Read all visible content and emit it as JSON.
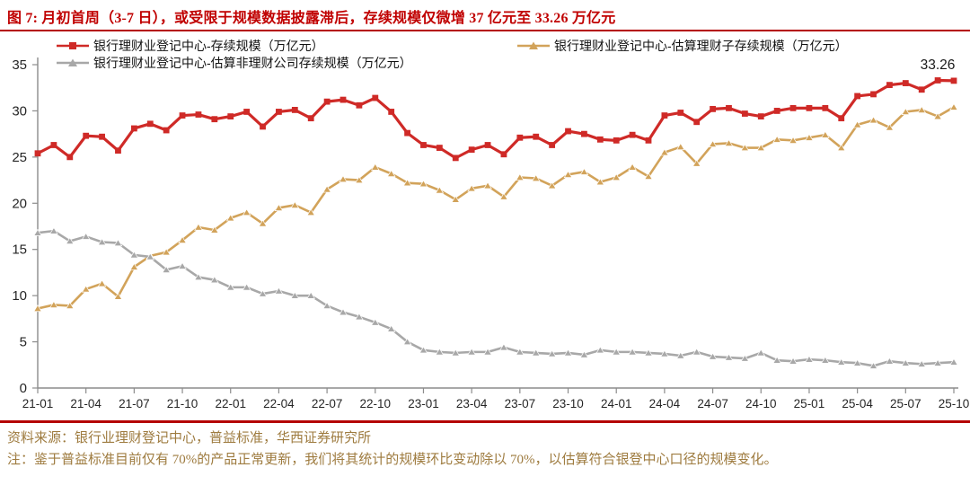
{
  "title": "图 7:  月初首周（3-7 日），或受限于规模数据披露滞后，存续规模仅微增 37 亿元至 33.26 万亿元",
  "colors": {
    "title_red": "#c00000",
    "rule_red": "#b40000",
    "axis_line": "#8c8c8c",
    "tick_label": "#262626",
    "footer_text": "#9e7b3f",
    "annotation_text": "#1a1a1a"
  },
  "footer": {
    "source": "资料来源：银行业理财登记中心，普益标准，华西证券研究所",
    "note": "注：鉴于普益标准目前仅有 70%的产品正常更新，我们将其统计的规模环比变动除以 70%，以估算符合银登中心口径的规模变化。"
  },
  "chart_data": {
    "type": "line",
    "title": "",
    "xlabel": "",
    "ylabel": "",
    "ylim": [
      0,
      35
    ],
    "yticks": [
      0,
      5,
      10,
      15,
      20,
      25,
      30,
      35
    ],
    "grid": false,
    "legend_position": "top",
    "x": [
      "21-01",
      "21-02",
      "21-03",
      "21-04",
      "21-05",
      "21-06",
      "21-07",
      "21-08",
      "21-09",
      "21-10",
      "21-11",
      "21-12",
      "22-01",
      "22-02",
      "22-03",
      "22-04",
      "22-05",
      "22-06",
      "22-07",
      "22-08",
      "22-09",
      "22-10",
      "22-11",
      "22-12",
      "23-01",
      "23-02",
      "23-03",
      "23-04",
      "23-05",
      "23-06",
      "23-07",
      "23-08",
      "23-09",
      "23-10",
      "23-11",
      "23-12",
      "24-01",
      "24-02",
      "24-03",
      "24-04",
      "24-05",
      "24-06",
      "24-07",
      "24-08",
      "24-09",
      "24-10",
      "24-11",
      "24-12",
      "25-01",
      "25-02",
      "25-03",
      "25-04",
      "25-05",
      "25-06",
      "25-07",
      "25-08",
      "25-09",
      "25-10"
    ],
    "x_tick_labels": [
      "21-01",
      "21-04",
      "21-07",
      "21-10",
      "22-01",
      "22-04",
      "22-07",
      "22-10",
      "23-01",
      "23-04",
      "23-07",
      "23-10",
      "24-01",
      "24-04",
      "24-07",
      "24-10",
      "25-01",
      "25-04",
      "25-07",
      "25-10"
    ],
    "series": [
      {
        "name": "银行理财业登记中心-存续规模（万亿元）",
        "color": "#cf2a27",
        "marker": "square",
        "line_width": 3.2,
        "values": [
          25.4,
          26.3,
          25.0,
          27.3,
          27.2,
          25.7,
          28.1,
          28.6,
          27.9,
          29.5,
          29.6,
          29.1,
          29.4,
          29.9,
          28.3,
          29.9,
          30.1,
          29.2,
          31.0,
          31.2,
          30.6,
          31.4,
          29.9,
          27.6,
          26.3,
          26.0,
          24.9,
          25.8,
          26.3,
          25.3,
          27.1,
          27.2,
          26.3,
          27.8,
          27.5,
          26.9,
          26.8,
          27.4,
          26.8,
          29.5,
          29.8,
          28.8,
          30.2,
          30.3,
          29.7,
          29.4,
          30.0,
          30.3,
          30.3,
          30.3,
          29.2,
          31.6,
          31.8,
          32.8,
          33.0,
          32.3,
          33.3,
          33.26
        ]
      },
      {
        "name": "银行理财业登记中心-估算理财子存续规模（万亿元）",
        "color": "#d2a35a",
        "marker": "triangle",
        "line_width": 2.6,
        "values": [
          8.6,
          9.0,
          8.9,
          10.7,
          11.3,
          9.9,
          13.1,
          14.3,
          14.7,
          16.0,
          17.4,
          17.1,
          18.4,
          19.0,
          17.8,
          19.5,
          19.8,
          19.0,
          21.5,
          22.6,
          22.5,
          23.9,
          23.2,
          22.2,
          22.1,
          21.4,
          20.4,
          21.6,
          21.9,
          20.7,
          22.8,
          22.7,
          21.9,
          23.1,
          23.4,
          22.3,
          22.8,
          23.9,
          22.9,
          25.5,
          26.1,
          24.3,
          26.4,
          26.5,
          26.0,
          26.0,
          26.9,
          26.8,
          27.1,
          27.4,
          26.0,
          28.5,
          29.0,
          28.2,
          29.9,
          30.1,
          29.4,
          30.4
        ]
      },
      {
        "name": "银行理财业登记中心-估算非理财公司存续规模（万亿元）",
        "color": "#a8a8a8",
        "marker": "triangle",
        "line_width": 2.6,
        "values": [
          16.8,
          17.0,
          15.9,
          16.4,
          15.8,
          15.7,
          14.4,
          14.2,
          12.8,
          13.2,
          12.0,
          11.7,
          10.9,
          10.9,
          10.2,
          10.5,
          10.0,
          10.0,
          8.9,
          8.2,
          7.7,
          7.1,
          6.4,
          5.0,
          4.1,
          3.9,
          3.8,
          3.9,
          3.9,
          4.4,
          3.9,
          3.8,
          3.7,
          3.8,
          3.6,
          4.1,
          3.9,
          3.9,
          3.8,
          3.7,
          3.5,
          3.9,
          3.4,
          3.3,
          3.2,
          3.8,
          3.0,
          2.9,
          3.1,
          3.0,
          2.8,
          2.7,
          2.4,
          2.9,
          2.7,
          2.6,
          2.7,
          2.8
        ]
      }
    ],
    "annotation": {
      "text": "33.26",
      "series": 0,
      "index": 57
    }
  }
}
